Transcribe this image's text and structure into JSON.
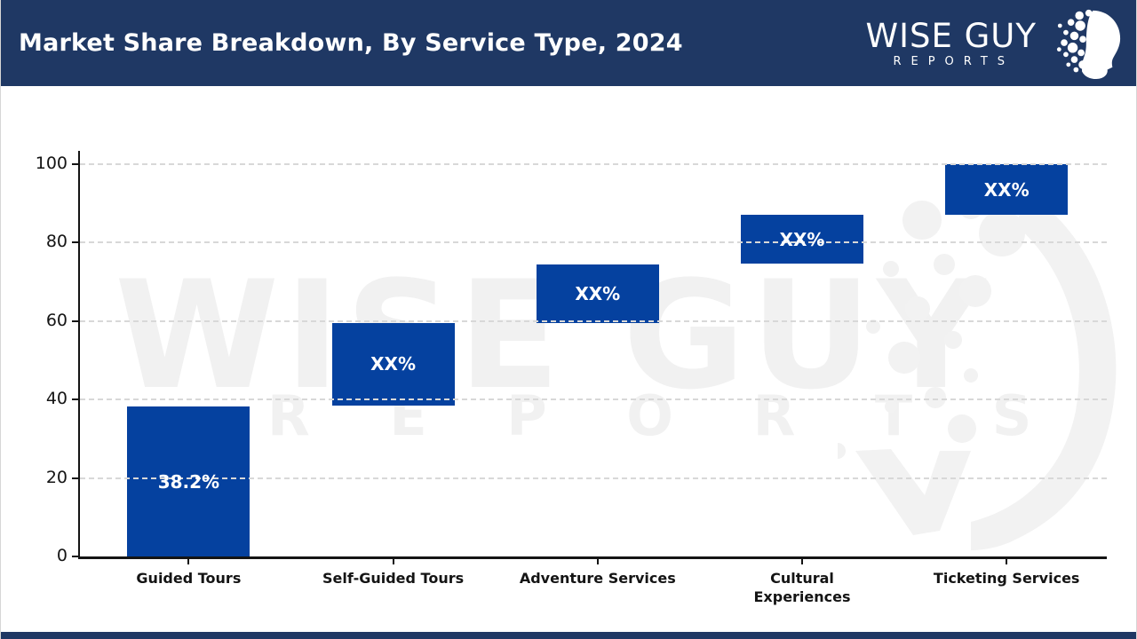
{
  "header": {
    "title": "Market Share Breakdown, By Service Type, 2024",
    "bg_color": "#1f3864",
    "logo": {
      "line1": "WISE GUY",
      "line2": "REPORTS"
    }
  },
  "watermark": {
    "line1": "WISE GUY",
    "line2": "R E P O R T S"
  },
  "footer": {
    "bg_color": "#1f3864"
  },
  "chart_data": {
    "type": "bar",
    "subtype": "waterfall",
    "title": "Market Share Breakdown, By Service Type, 2024",
    "categories": [
      "Guided Tours",
      "Self-Guided Tours",
      "Adventure Services",
      "Cultural Experiences",
      "Ticketing Services"
    ],
    "category_lines": [
      [
        "Guided Tours"
      ],
      [
        "Self-Guided Tours"
      ],
      [
        "Adventure Services"
      ],
      [
        "Cultural",
        "Experiences"
      ],
      [
        "Ticketing Services"
      ]
    ],
    "segments": [
      {
        "category": "Guided Tours",
        "start": 0,
        "end": 38.2,
        "label": "38.2%"
      },
      {
        "category": "Self-Guided Tours",
        "start": 38.5,
        "end": 59.6,
        "label": "XX%"
      },
      {
        "category": "Adventure Services",
        "start": 59.6,
        "end": 74.5,
        "label": "XX%"
      },
      {
        "category": "Cultural Experiences",
        "start": 74.7,
        "end": 87.0,
        "label": "XX%"
      },
      {
        "category": "Ticketing Services",
        "start": 87.0,
        "end": 100.0,
        "label": "XX%"
      }
    ],
    "y_ticks": [
      0,
      20,
      40,
      60,
      80,
      100
    ],
    "gridline_values": [
      20,
      40,
      60,
      80,
      100
    ],
    "ylim": [
      0,
      103.5
    ],
    "bar_color": "#05419f",
    "grid": "dashed-horizontal",
    "legend": "none"
  }
}
